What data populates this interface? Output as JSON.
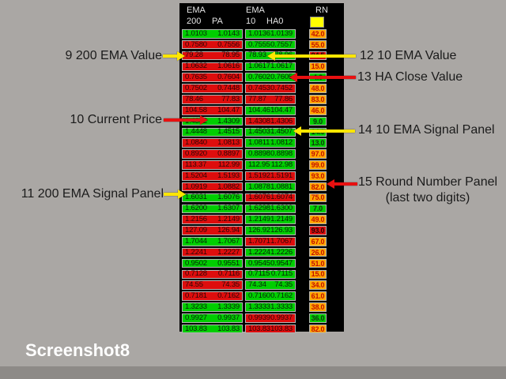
{
  "footer": {
    "label": "Screenshot8"
  },
  "colors": {
    "background": "#aaa7a4",
    "panel": "#000000",
    "green": "#00ce00",
    "red": "#de0d0d",
    "orange": "#ffa800",
    "legend_yellow": "#ffff00",
    "arrow_yellow": "#ffe600",
    "arrow_red": "#e81010"
  },
  "panel": {
    "headers": {
      "ema_left": "EMA",
      "ema_left_sub": "200",
      "pa": "PA",
      "ema_mid": "EMA",
      "ema_mid_sub": "10",
      "ha0": "HA0",
      "rn": "RN"
    },
    "rows": [
      {
        "ema200": "1.0103",
        "pa": "1.0143",
        "left": "green",
        "ema10": "1.0136",
        "ha0": "1.0139",
        "mid": "green",
        "rn": "42.0",
        "rn_color": "orange"
      },
      {
        "ema200": "0.7580",
        "pa": "0.7556",
        "left": "red",
        "ema10": "0.7555",
        "ha0": "0.7557",
        "mid": "green",
        "rn": "55.0",
        "rn_color": "orange"
      },
      {
        "ema200": "79.28",
        "pa": "78.95",
        "left": "red",
        "ema10": "78.93",
        "ha0": "78.96",
        "mid": "green",
        "rn": "94.5",
        "rn_color": "red"
      },
      {
        "ema200": "1.0632",
        "pa": "1.0616",
        "left": "red",
        "ema10": "1.0617",
        "ha0": "1.0617",
        "mid": "green",
        "rn": "15.0",
        "rn_color": "orange"
      },
      {
        "ema200": "0.7635",
        "pa": "0.7604",
        "left": "red",
        "ema10": "0.7602",
        "ha0": "0.7605",
        "mid": "green",
        "rn": "4.0",
        "rn_color": "green"
      },
      {
        "ema200": "0.7502",
        "pa": "0.7448",
        "left": "red",
        "ema10": "0.7453",
        "ha0": "0.7452",
        "mid": "red",
        "rn": "48.0",
        "rn_color": "orange"
      },
      {
        "ema200": "78.46",
        "pa": "77.83",
        "left": "red",
        "ema10": "77.87",
        "ha0": "77.86",
        "mid": "red",
        "rn": "83.0",
        "rn_color": "orange"
      },
      {
        "ema200": "104.58",
        "pa": "104.47",
        "left": "red",
        "ema10": "104.46",
        "ha0": "104.47",
        "mid": "green",
        "rn": "46.0",
        "rn_color": "orange"
      },
      {
        "ema200": "1.4302",
        "pa": "1.4309",
        "left": "green",
        "ema10": "1.4308",
        "ha0": "1.4306",
        "mid": "red",
        "rn": "9.0",
        "rn_color": "green"
      },
      {
        "ema200": "1.4448",
        "pa": "1.4515",
        "left": "green",
        "ema10": "1.4503",
        "ha0": "1.4507",
        "mid": "green",
        "rn": "14.0",
        "rn_color": "green"
      },
      {
        "ema200": "1.0840",
        "pa": "1.0813",
        "left": "red",
        "ema10": "1.0811",
        "ha0": "1.0812",
        "mid": "green",
        "rn": "13.0",
        "rn_color": "green"
      },
      {
        "ema200": "0.8920",
        "pa": "0.8897",
        "left": "red",
        "ema10": "0.8898",
        "ha0": "0.8898",
        "mid": "green",
        "rn": "97.0",
        "rn_color": "orange"
      },
      {
        "ema200": "113.37",
        "pa": "112.99",
        "left": "red",
        "ema10": "112.95",
        "ha0": "112.98",
        "mid": "green",
        "rn": "99.0",
        "rn_color": "orange"
      },
      {
        "ema200": "1.5204",
        "pa": "1.5193",
        "left": "red",
        "ema10": "1.5192",
        "ha0": "1.5191",
        "mid": "red",
        "rn": "93.0",
        "rn_color": "orange"
      },
      {
        "ema200": "1.0919",
        "pa": "1.0882",
        "left": "red",
        "ema10": "1.0878",
        "ha0": "1.0881",
        "mid": "green",
        "rn": "82.0",
        "rn_color": "orange"
      },
      {
        "ema200": "1.6031",
        "pa": "1.6076",
        "left": "green",
        "ema10": "1.6076",
        "ha0": "1.6074",
        "mid": "red",
        "rn": "75.0",
        "rn_color": "orange"
      },
      {
        "ema200": "1.6200",
        "pa": "1.6307",
        "left": "green",
        "ema10": "1.6298",
        "ha0": "1.6300",
        "mid": "green",
        "rn": "7.0",
        "rn_color": "green"
      },
      {
        "ema200": "1.2156",
        "pa": "1.2149",
        "left": "red",
        "ema10": "1.2149",
        "ha0": "1.2149",
        "mid": "green",
        "rn": "49.0",
        "rn_color": "orange"
      },
      {
        "ema200": "127.09",
        "pa": "126.94",
        "left": "red",
        "ema10": "126.92",
        "ha0": "126.93",
        "mid": "green",
        "rn": "93.0",
        "rn_color": "red"
      },
      {
        "ema200": "1.7044",
        "pa": "1.7067",
        "left": "green",
        "ema10": "1.7071",
        "ha0": "1.7067",
        "mid": "red",
        "rn": "67.0",
        "rn_color": "orange"
      },
      {
        "ema200": "1.2241",
        "pa": "1.2227",
        "left": "red",
        "ema10": "1.2224",
        "ha0": "1.2226",
        "mid": "green",
        "rn": "26.0",
        "rn_color": "orange"
      },
      {
        "ema200": "0.9502",
        "pa": "0.9551",
        "left": "green",
        "ema10": "0.9545",
        "ha0": "0.9547",
        "mid": "green",
        "rn": "51.0",
        "rn_color": "orange"
      },
      {
        "ema200": "0.7128",
        "pa": "0.7116",
        "left": "red",
        "ema10": "0.7115",
        "ha0": "0.7115",
        "mid": "green",
        "rn": "15.0",
        "rn_color": "orange"
      },
      {
        "ema200": "74.55",
        "pa": "74.35",
        "left": "red",
        "ema10": "74.34",
        "ha0": "74.35",
        "mid": "green",
        "rn": "34.0",
        "rn_color": "orange"
      },
      {
        "ema200": "0.7181",
        "pa": "0.7162",
        "left": "red",
        "ema10": "0.7160",
        "ha0": "0.7162",
        "mid": "green",
        "rn": "61.0",
        "rn_color": "orange"
      },
      {
        "ema200": "1.3233",
        "pa": "1.3339",
        "left": "green",
        "ema10": "1.3333",
        "ha0": "1.3333",
        "mid": "green",
        "rn": "38.0",
        "rn_color": "orange"
      },
      {
        "ema200": "0.9927",
        "pa": "0.9937",
        "left": "green",
        "ema10": "0.9939",
        "ha0": "0.9937",
        "mid": "red",
        "rn": "36.0",
        "rn_color": "green"
      },
      {
        "ema200": "103.83",
        "pa": "103.83",
        "left": "green",
        "ema10": "103.83",
        "ha0": "103.83",
        "mid": "red",
        "rn": "82.0",
        "rn_color": "orange"
      }
    ]
  },
  "annotations": {
    "a9": "9 200 EMA Value",
    "a10": "10 Current Price",
    "a11": "11 200 EMA Signal Panel",
    "a12": "12 10 EMA Value",
    "a13": "13 HA Close Value",
    "a14": "14 10 EMA Signal Panel",
    "a15_line1": "15 Round Number Panel",
    "a15_line2": "(last two digits)"
  }
}
